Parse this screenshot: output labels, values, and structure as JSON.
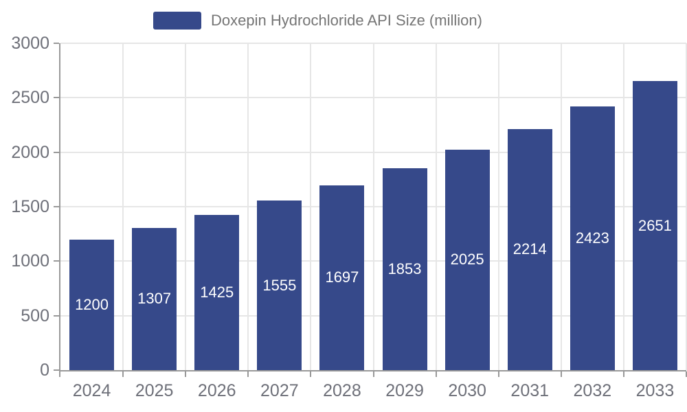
{
  "legend": {
    "items": [
      {
        "label": "Doxepin Hydrochloride API Size (million)",
        "color": "#36498A"
      }
    ]
  },
  "chart_data": {
    "type": "bar",
    "title": "Doxepin Hydrochloride API Size (million)",
    "series_name": "Doxepin Hydrochloride API Size (million)",
    "categories": [
      "2024",
      "2025",
      "2026",
      "2027",
      "2028",
      "2029",
      "2030",
      "2031",
      "2032",
      "2033"
    ],
    "values": [
      1200,
      1307,
      1425,
      1555,
      1697,
      1853,
      2025,
      2214,
      2423,
      2651
    ],
    "xlabel": "",
    "ylabel": "",
    "ylim": [
      0,
      3000
    ],
    "yticks": [
      0,
      500,
      1000,
      1500,
      2000,
      2500,
      3000
    ],
    "grid": true,
    "legend_position": "top",
    "bar_color": "#36498A",
    "value_label_color": "#FFFFFF",
    "axis_label_color": "#6E7079",
    "axis_line_color": "#999999",
    "grid_color": "#E6E6E6",
    "background_color": "#FFFFFF"
  }
}
